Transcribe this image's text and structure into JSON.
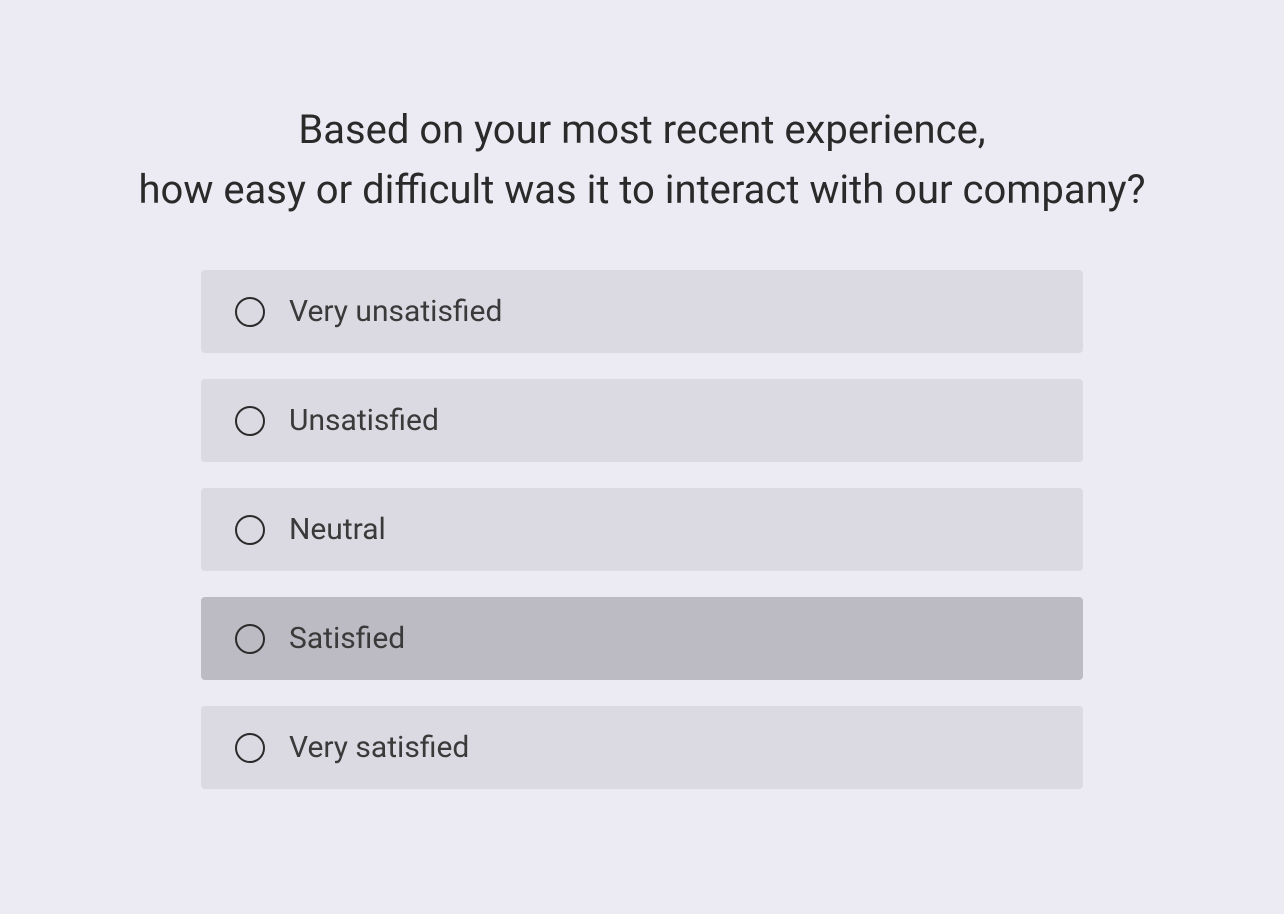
{
  "question": {
    "line1": "Based on your most recent experience,",
    "line2": "how easy or difficult was it to interact with our company?"
  },
  "options": [
    {
      "label": "Very unsatisfied",
      "hovered": false
    },
    {
      "label": "Unsatisfied",
      "hovered": false
    },
    {
      "label": "Neutral",
      "hovered": false
    },
    {
      "label": "Satisfied",
      "hovered": true
    },
    {
      "label": "Very satisfied",
      "hovered": false
    }
  ],
  "colors": {
    "background": "#ecebf3",
    "option_normal": "#dbdae3",
    "option_hovered": "#bcbbc3",
    "text": "#2a2a2a",
    "label_text": "#3a3a3a",
    "radio_border": "#2a2a2a"
  },
  "typography": {
    "question_fontsize": 40,
    "option_fontsize": 30
  }
}
